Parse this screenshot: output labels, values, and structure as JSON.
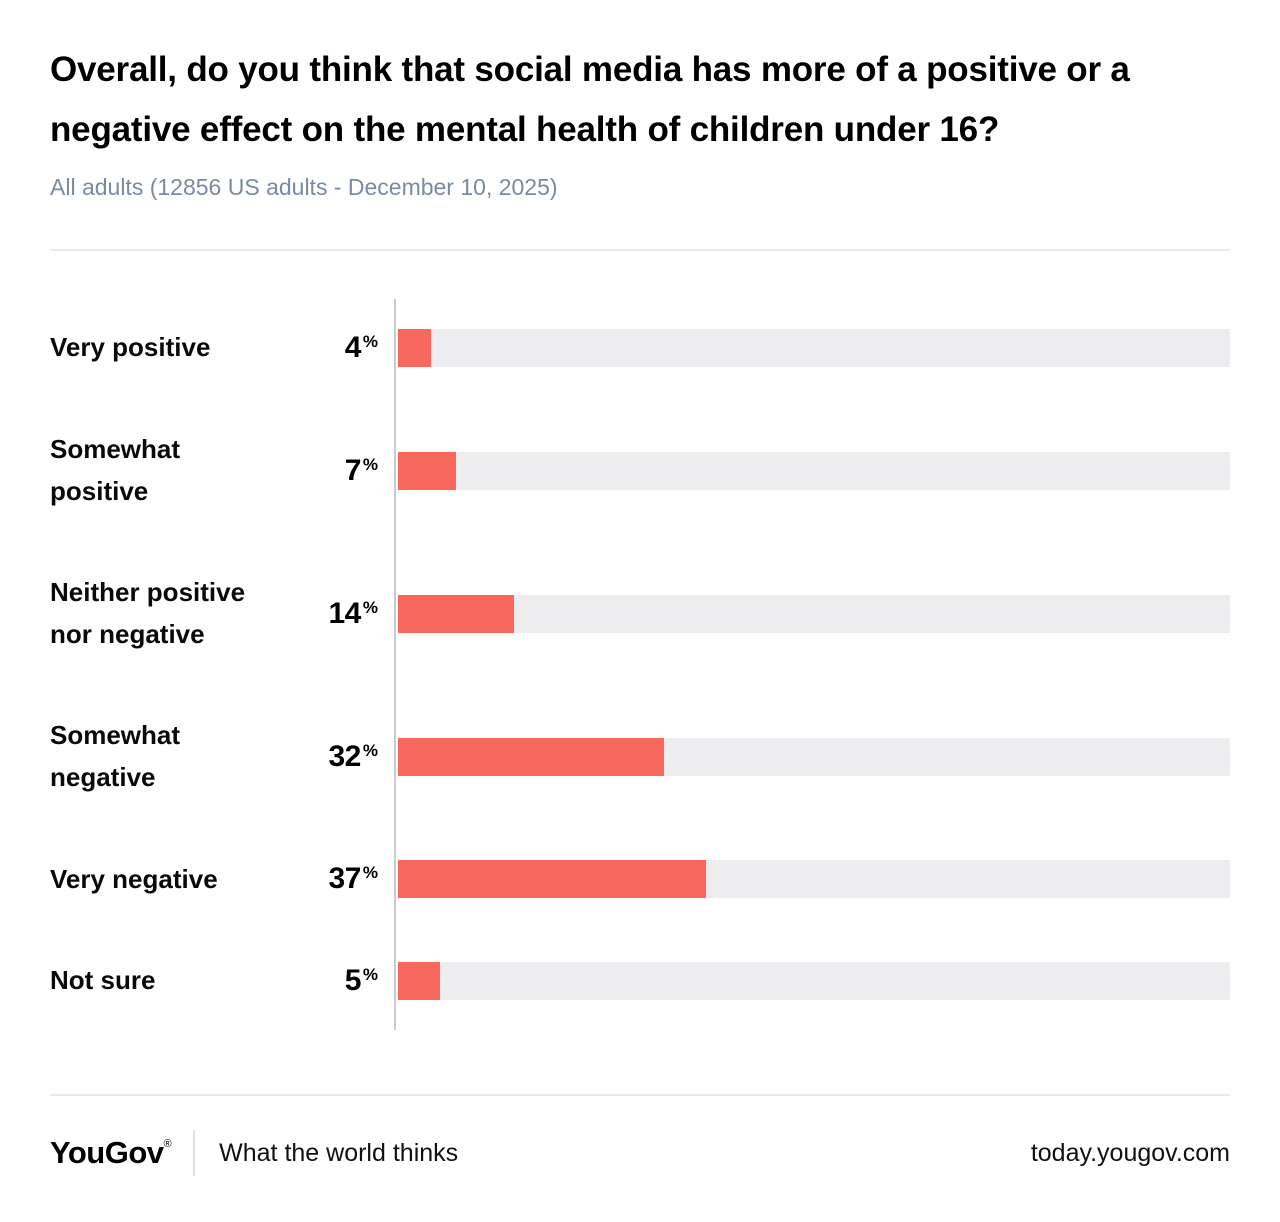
{
  "header": {
    "title": "Overall, do you think that social media has more of a positive or a negative effect on the mental health of children under 16?",
    "subtitle": "All adults (12856 US adults - December 10, 2025)"
  },
  "chart_data": {
    "type": "bar",
    "orientation": "horizontal",
    "title": "Overall, do you think that social media has more of a positive or a negative effect on the mental health of children under 16?",
    "subtitle": "All adults (12856 US adults - December 10, 2025)",
    "categories": [
      "Very positive",
      "Somewhat positive",
      "Neither positive nor negative",
      "Somewhat negative",
      "Very negative",
      "Not sure"
    ],
    "values": [
      4,
      7,
      14,
      32,
      37,
      5
    ],
    "value_suffix": "%",
    "xlim": [
      0,
      100
    ],
    "grid": false,
    "legend": false,
    "bar_color": "#f9685c",
    "track_color": "#ededf0",
    "axis_color": "#c9cccf"
  },
  "footer": {
    "logo": "YouGov",
    "registered_mark": "®",
    "tagline": "What the world thinks",
    "url": "today.yougov.com"
  }
}
